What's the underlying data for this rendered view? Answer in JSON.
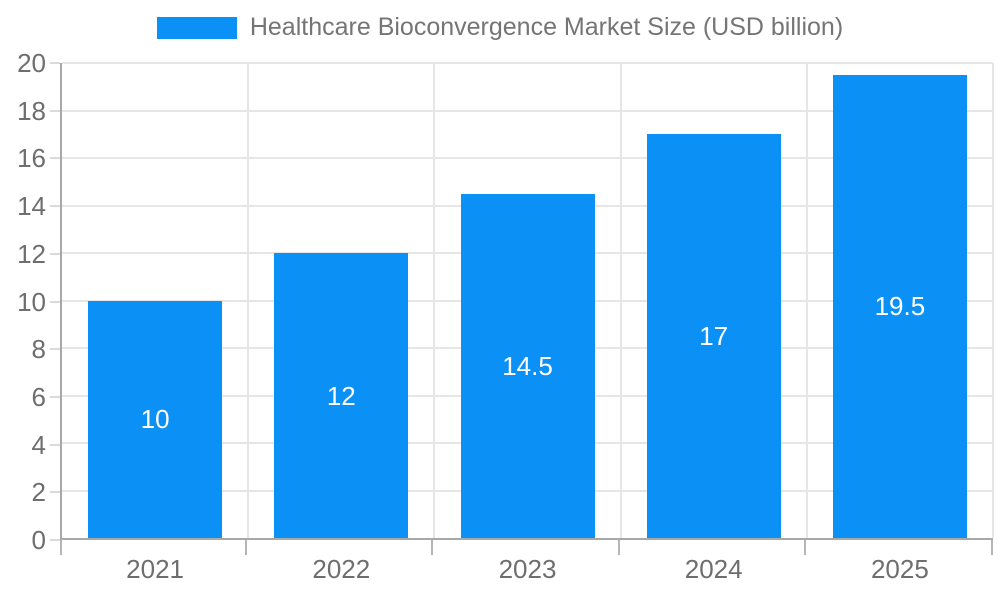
{
  "legend": {
    "items": [
      {
        "label": "Healthcare Bioconvergence Market Size (USD billion)"
      }
    ]
  },
  "chart_data": {
    "type": "bar",
    "title": "Healthcare Bioconvergence Market Size (USD billion)",
    "categories": [
      "2021",
      "2022",
      "2023",
      "2024",
      "2025"
    ],
    "values": [
      10,
      12,
      14.5,
      17,
      19.5
    ],
    "data_labels": [
      "10",
      "12",
      "14.5",
      "17",
      "19.5"
    ],
    "xlabel": "",
    "ylabel": "",
    "ylim": [
      0,
      20
    ],
    "ytick_step": 2,
    "yticks": [
      0,
      2,
      4,
      6,
      8,
      10,
      12,
      14,
      16,
      18,
      20
    ],
    "grid": true,
    "legend_position": "top",
    "bar_color": "#0b90f5",
    "bar_label_color": "#ffffff"
  },
  "colors": {
    "background": "#ffffff",
    "bar": "#0b90f5",
    "grid_line": "#e6e6e6",
    "axis_line": "#a8a8a8",
    "y_tick_mark": "#dadada",
    "x_tick_mark": "#b5b5b5",
    "tick_label": "#6e6e6e",
    "legend_text": "#757575",
    "bar_label": "#ffffff"
  }
}
